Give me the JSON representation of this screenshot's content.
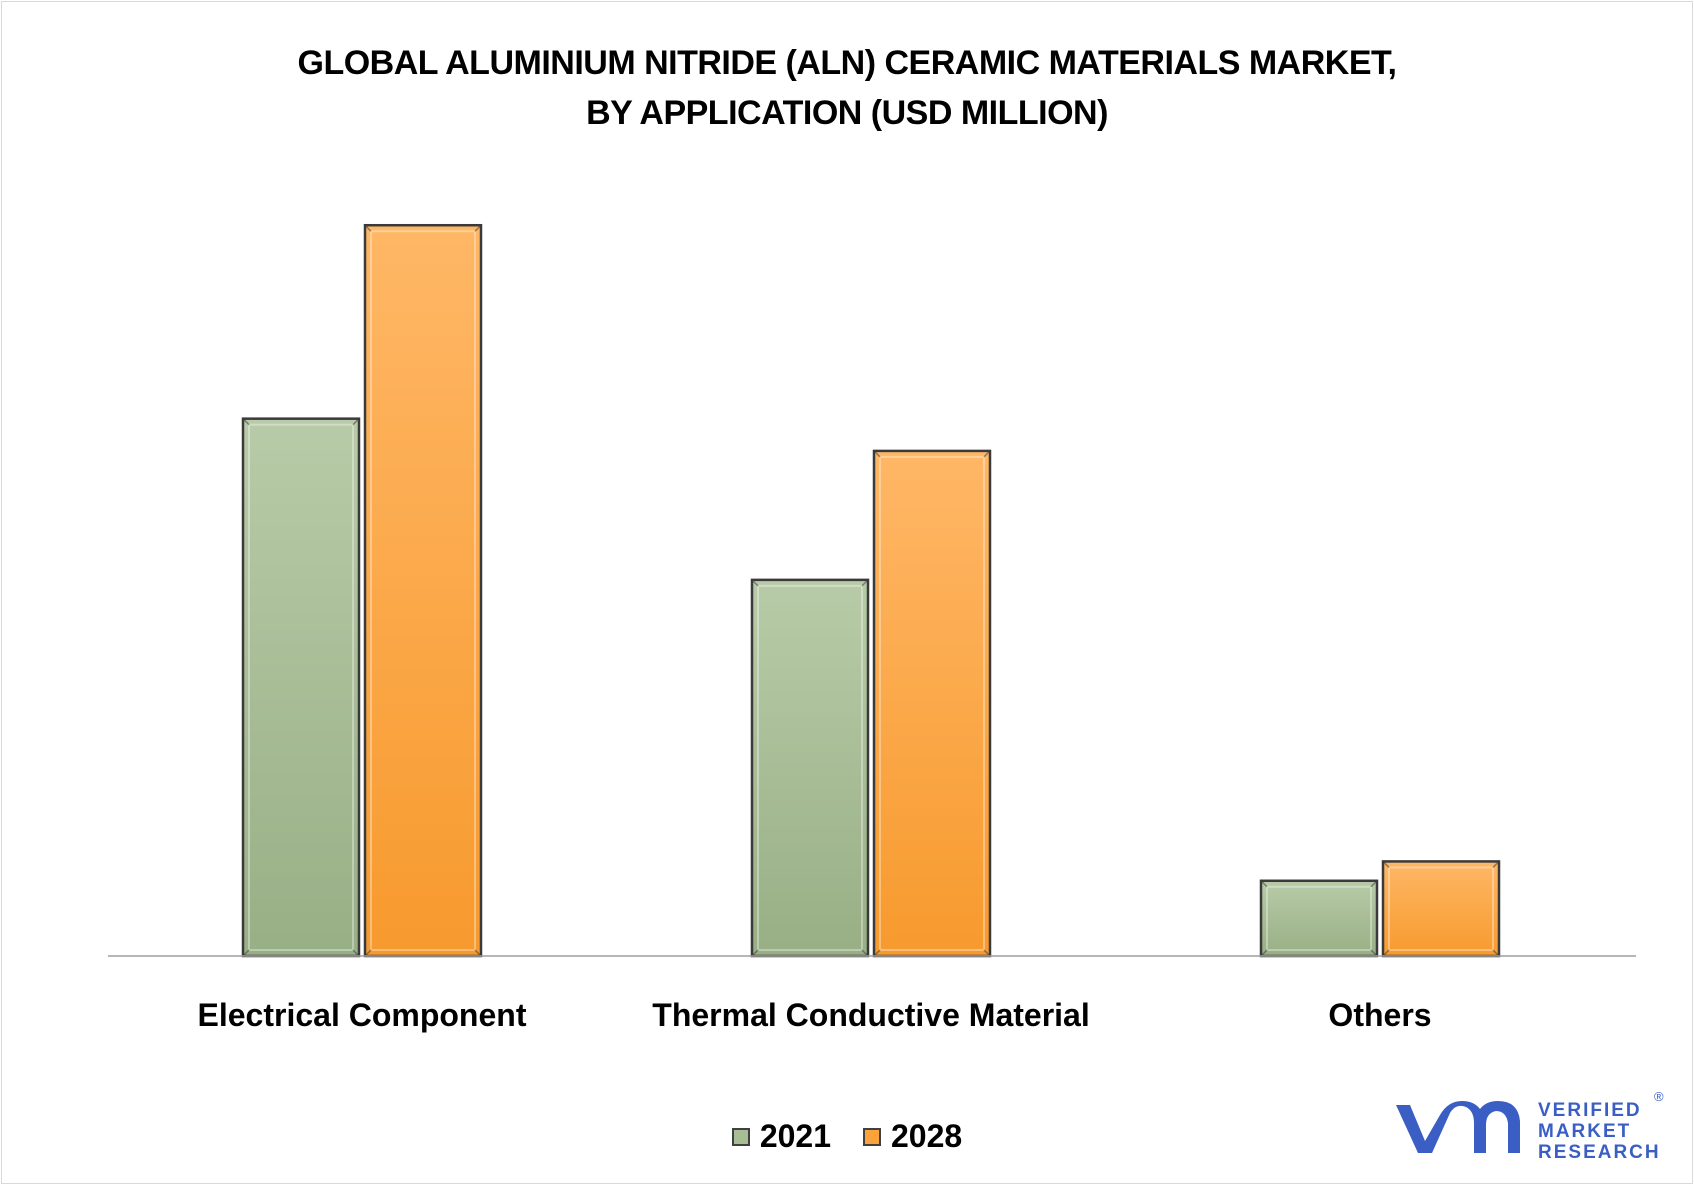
{
  "title": {
    "line1": "GLOBAL ALUMINIUM NITRIDE (ALN) CERAMIC MATERIALS MARKET,",
    "line2": "BY APPLICATION (USD MILLION)"
  },
  "colors": {
    "series_2021": "#a7be95",
    "series_2028": "#fba23b",
    "bar_outline": "#3a3a3a",
    "axis": "#9e9e9e",
    "logo_blue": "#3a5ec4"
  },
  "chart_data": {
    "type": "bar",
    "categories": [
      "Electrical Component",
      "Thermal Conductive Material",
      "Others"
    ],
    "series": [
      {
        "name": "2021",
        "values": [
          50,
          35,
          7
        ]
      },
      {
        "name": "2028",
        "values": [
          68,
          47,
          8.8
        ]
      }
    ],
    "ylim": [
      0,
      75
    ],
    "grid": false,
    "legend": "bottom-center",
    "xlabel": "",
    "ylabel": ""
  },
  "legend": {
    "items": [
      "2021",
      "2028"
    ]
  },
  "logo": {
    "line1": "VERIFIED",
    "line2": "MARKET",
    "line3": "RESEARCH",
    "reg": "®"
  }
}
